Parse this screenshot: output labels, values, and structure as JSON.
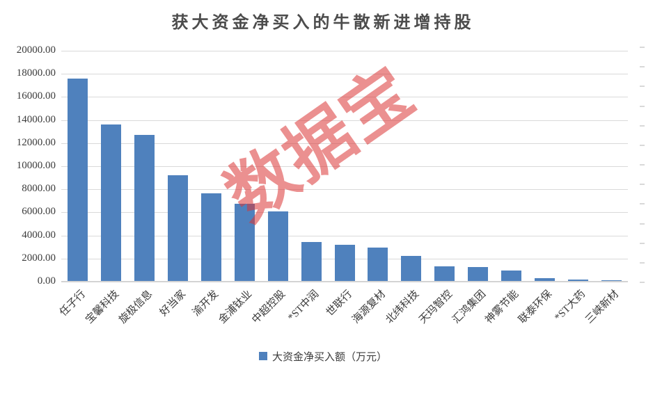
{
  "title": "获大资金净买入的牛散新进增持股",
  "watermark_text": "数据宝",
  "legend": {
    "label": "大资金净买入额（万元）",
    "marker_color": "#4f81bd"
  },
  "colors": {
    "bar": "#4f81bd",
    "gridline": "#d9d9d9",
    "axis_line": "#d3d3d3",
    "title_text": "#4c4c4c",
    "tick_text": "#3b3b3b",
    "watermark": "rgba(219,52,52,0.55)"
  },
  "chart_data": {
    "type": "bar",
    "title": "获大资金净买入的牛散新进增持股",
    "categories": [
      "任子行",
      "宝馨科技",
      "旋极信息",
      "好当家",
      "渝开发",
      "金浦钛业",
      "中超控股",
      "*ST中润",
      "世联行",
      "海源复材",
      "北纬科技",
      "天玛智控",
      "汇鸿集团",
      "神雾节能",
      "联泰环保",
      "*ST大药",
      "三峡新材"
    ],
    "series": [
      {
        "name": "大资金净买入额（万元）",
        "values": [
          17600,
          13600,
          12700,
          9200,
          7630,
          6730,
          6080,
          3420,
          3210,
          2950,
          2210,
          1340,
          1250,
          960,
          300,
          160,
          140
        ]
      }
    ],
    "xlabel": "",
    "ylabel": "",
    "ylim": [
      0,
      20000
    ],
    "ytick_step": 2000,
    "ytick_decimals": 2,
    "grid": true,
    "legend_position": "bottom",
    "bar_color": "#4f81bd"
  }
}
